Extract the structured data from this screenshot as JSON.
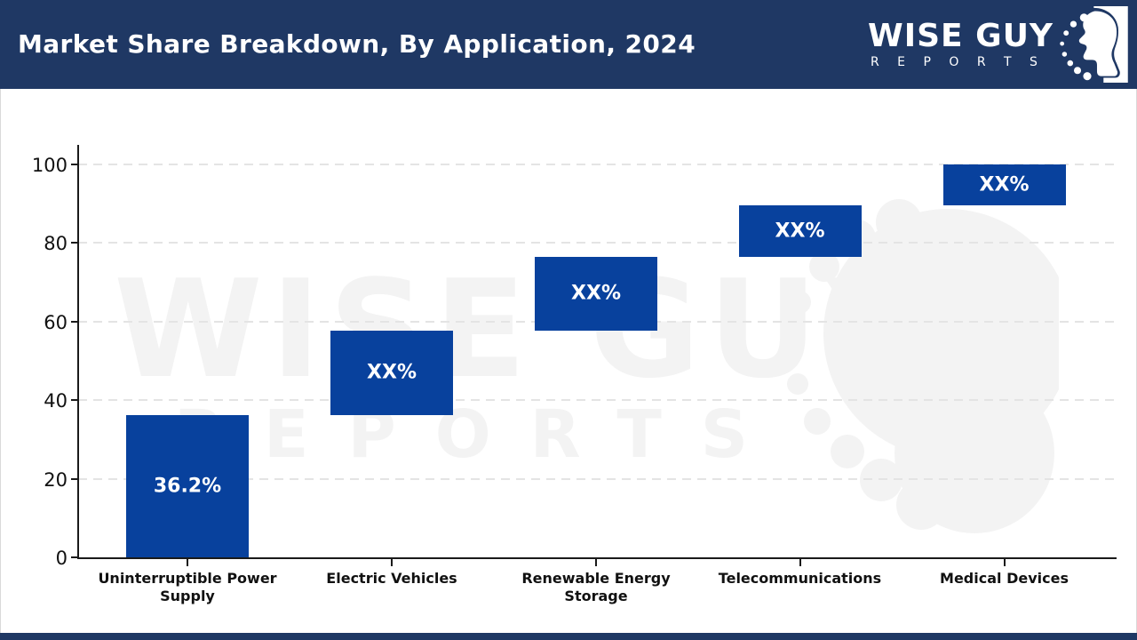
{
  "header": {
    "title": "Market Share Breakdown, By Application, 2024",
    "brand": {
      "line1": "WISE GUY",
      "line2": "R E P O R T S"
    }
  },
  "watermark": {
    "line1": "WISE GUY",
    "line2": "REPORTS"
  },
  "colors": {
    "header_bg": "#1f3864",
    "footer_bg": "#1f3864",
    "bar": "#08419d",
    "bar_label": "#ffffff",
    "grid": "#e4e4e4",
    "axis": "#1a1a1a",
    "watermark": "#f3f3f3"
  },
  "chart_data": {
    "type": "bar",
    "subtype": "floating-waterfall",
    "title": "Market Share Breakdown, By Application, 2024",
    "categories": [
      "Uninterruptible Power Supply",
      "Electric Vehicles",
      "Renewable Energy Storage",
      "Telecommunications",
      "Medical Devices"
    ],
    "segments": [
      {
        "start": 0,
        "end": 36.2,
        "label": "36.2%"
      },
      {
        "start": 36.2,
        "end": 57.8,
        "label": "XX%"
      },
      {
        "start": 57.8,
        "end": 76.5,
        "label": "XX%"
      },
      {
        "start": 76.5,
        "end": 89.6,
        "label": "XX%"
      },
      {
        "start": 89.6,
        "end": 100,
        "label": "XX%"
      }
    ],
    "xlabel": "",
    "ylabel": "",
    "yticks": [
      0,
      20,
      40,
      60,
      80,
      100
    ],
    "ylim": [
      0,
      104
    ],
    "grid": "horizontal-dashed",
    "legend": "none"
  }
}
